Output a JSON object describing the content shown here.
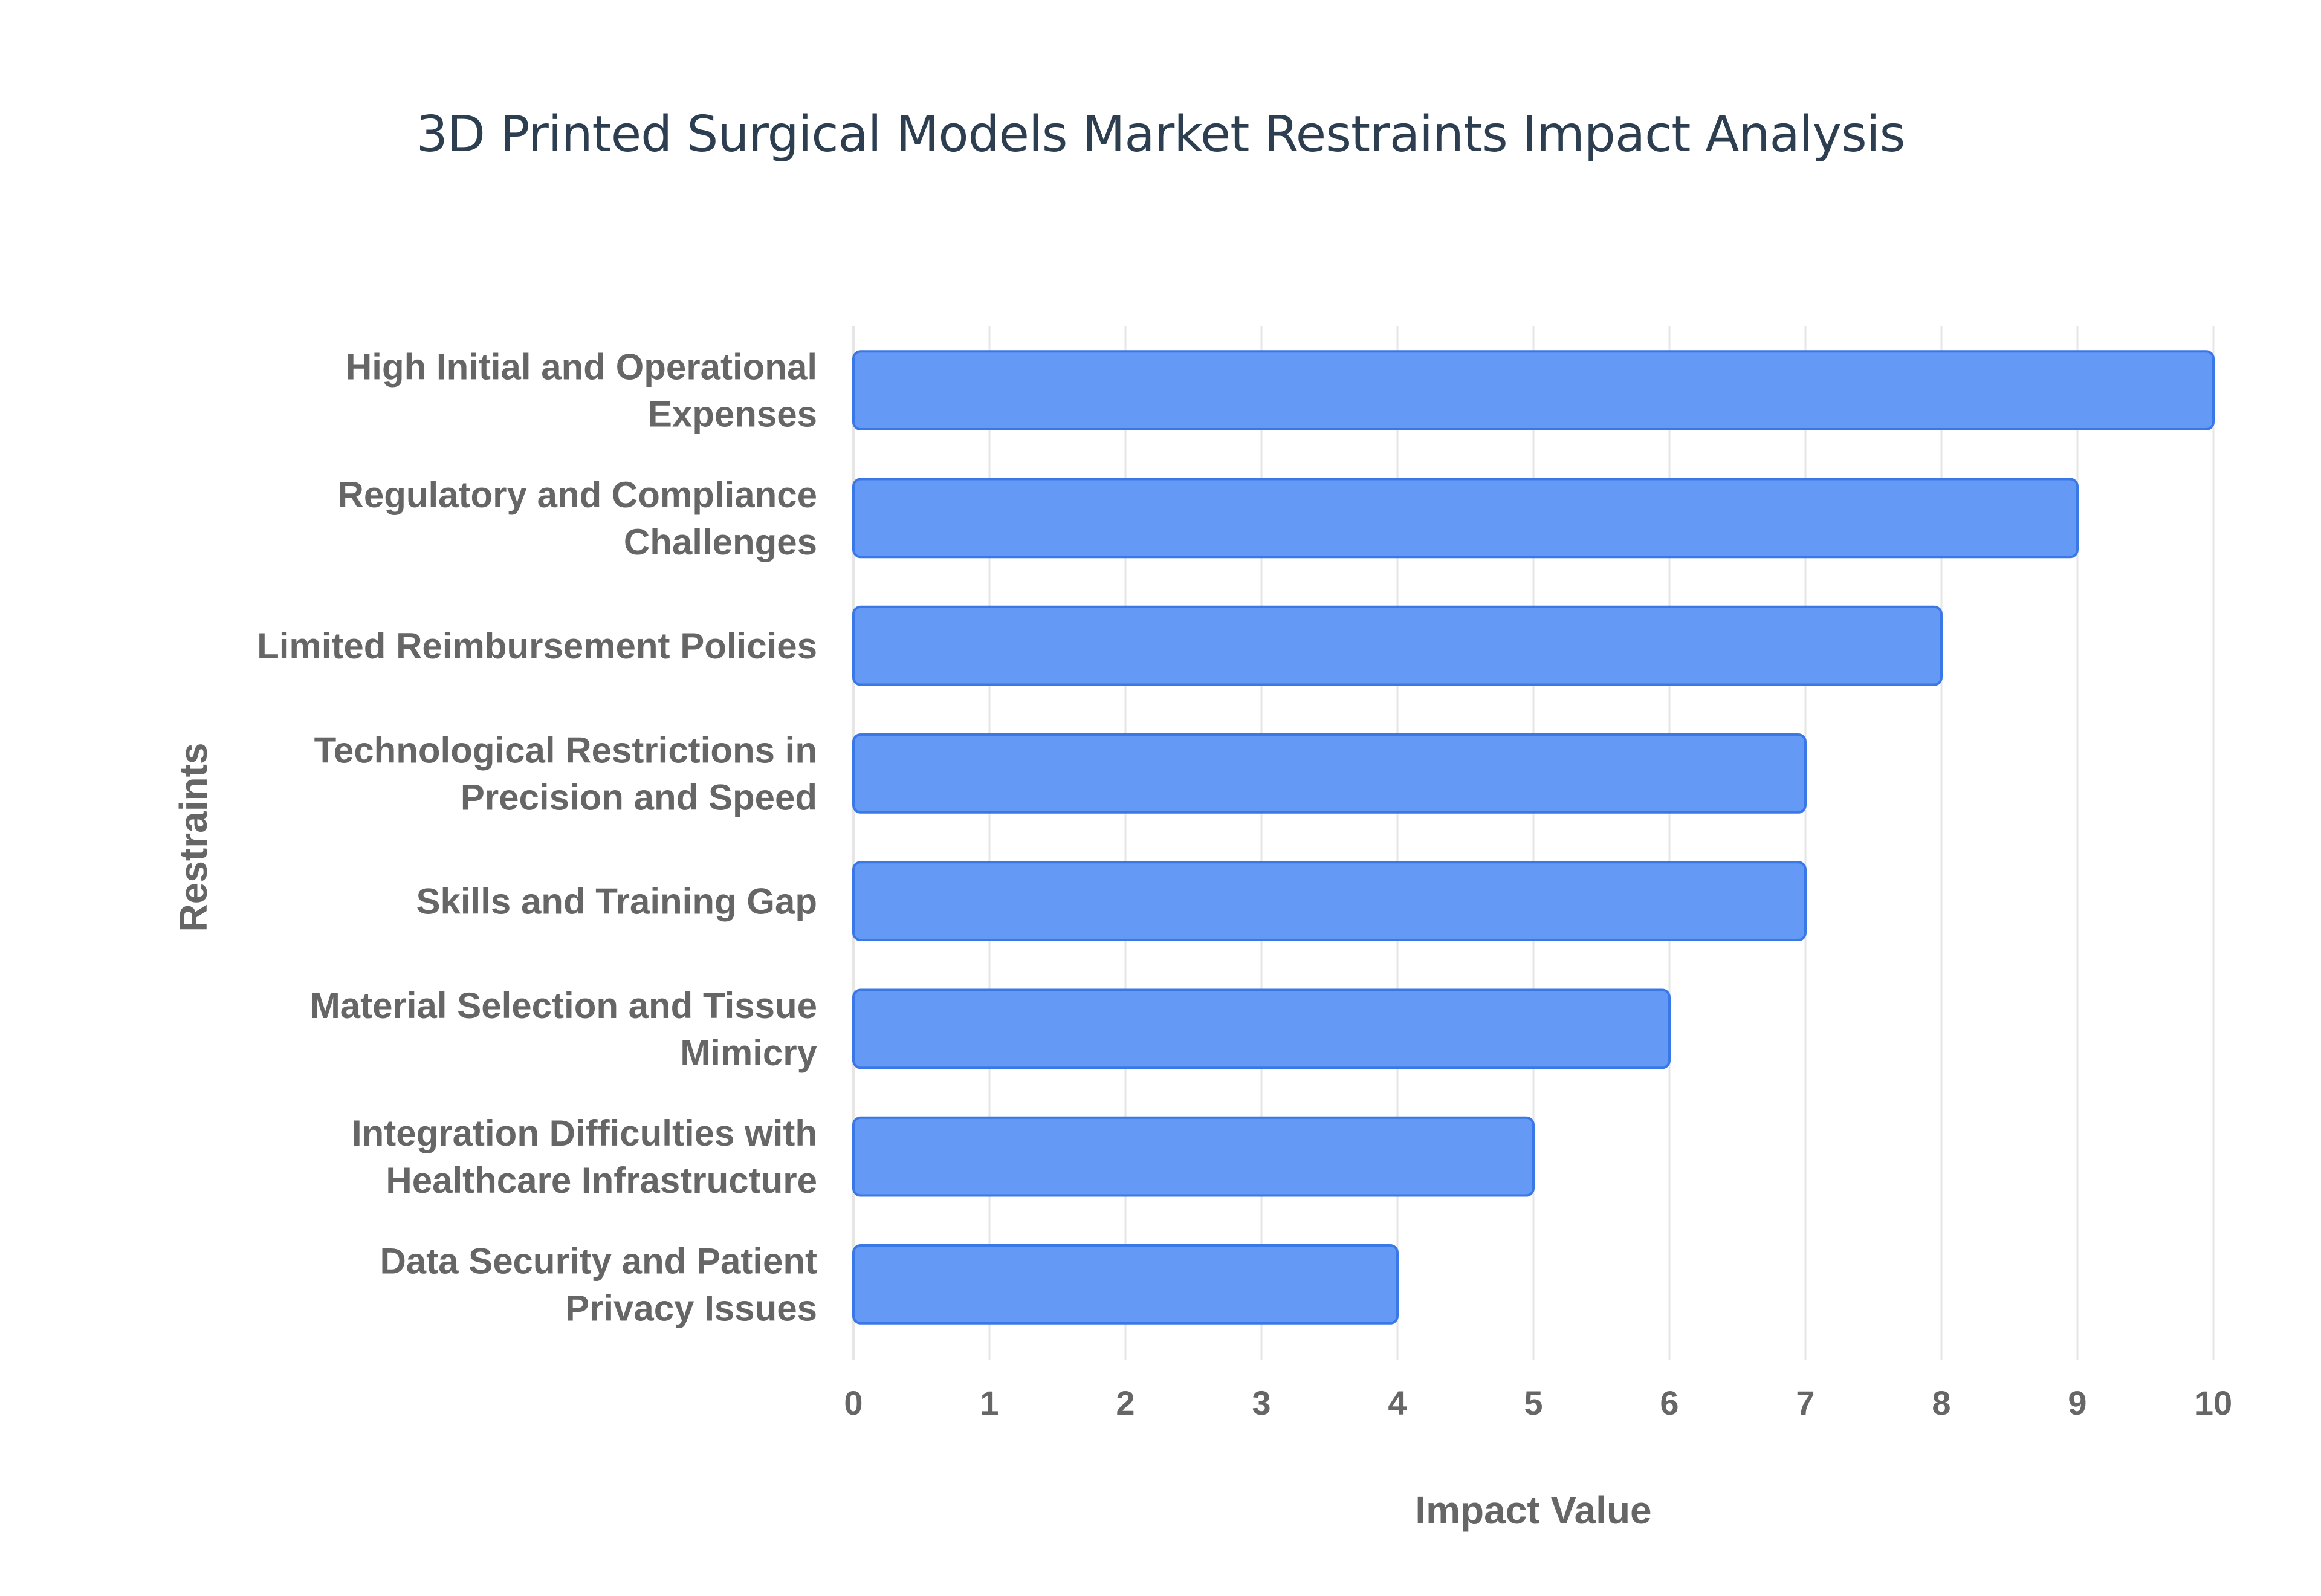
{
  "chart_data": {
    "type": "bar",
    "orientation": "horizontal",
    "title": "3D Printed Surgical Models Market Restraints Impact Analysis",
    "xlabel": "Impact Value",
    "ylabel": "Restraints",
    "xlim": [
      0,
      10
    ],
    "x_ticks": [
      "0",
      "1",
      "2",
      "3",
      "4",
      "5",
      "6",
      "7",
      "8",
      "9",
      "10"
    ],
    "grid": true,
    "legend": "none",
    "categories": [
      [
        "High Initial and Operational",
        "Expenses"
      ],
      [
        "Regulatory and Compliance",
        "Challenges"
      ],
      [
        "Limited Reimbursement Policies"
      ],
      [
        "Technological Restrictions in",
        "Precision and Speed"
      ],
      [
        "Skills and Training Gap"
      ],
      [
        "Material Selection and Tissue",
        "Mimicry"
      ],
      [
        "Integration Difficulties with",
        "Healthcare Infrastructure"
      ],
      [
        "Data Security and Patient",
        "Privacy Issues"
      ]
    ],
    "values": [
      10,
      9,
      8,
      7,
      7,
      6,
      5,
      4
    ],
    "colors": {
      "bar_fill": "#6499f5",
      "bar_stroke": "#3b78e7",
      "grid": "#e6e6e6",
      "text": "#666666",
      "title": "#2c3e50"
    }
  }
}
